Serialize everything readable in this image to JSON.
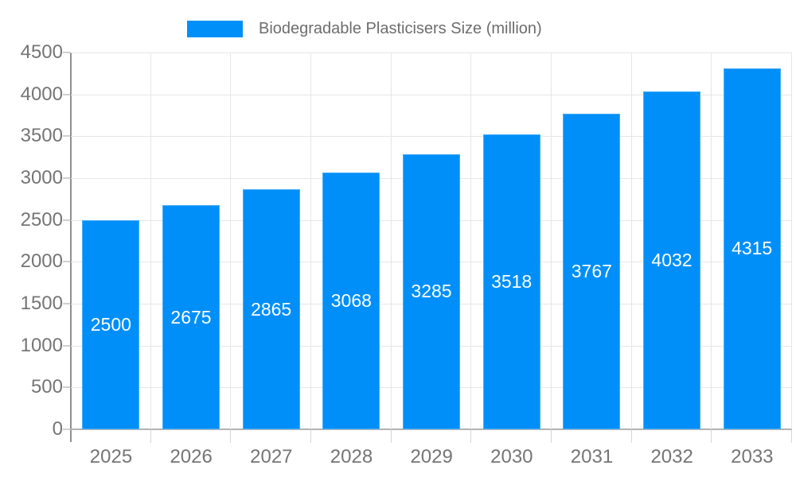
{
  "legend": {
    "label": "Biodegradable Plasticisers Size (million)"
  },
  "chart_data": {
    "type": "bar",
    "title": "Biodegradable Plasticisers Size (million)",
    "series": [
      {
        "name": "Biodegradable Plasticisers Size (million)",
        "values": [
          2500,
          2675,
          2865,
          3068,
          3285,
          3518,
          3767,
          4032,
          4315
        ]
      }
    ],
    "categories": [
      "2025",
      "2026",
      "2027",
      "2028",
      "2029",
      "2030",
      "2031",
      "2032",
      "2033"
    ],
    "data_labels": [
      "2500",
      "2675",
      "2865",
      "3068",
      "3285",
      "3518",
      "3767",
      "4032",
      "4315"
    ],
    "yticks": [
      0,
      500,
      1000,
      1500,
      2000,
      2500,
      3000,
      3500,
      4000,
      4500
    ],
    "ylim": [
      0,
      4500
    ],
    "xlabel": "",
    "ylabel": "",
    "grid": true,
    "legend_position": "top",
    "colors": {
      "bar": "#008ff8",
      "bar_label": "#ffffff",
      "axis_text": "#757575",
      "legend_text": "#6d6d6d",
      "gridline": "#e6e6e6",
      "y_axis_line": "#8f8f8f",
      "x_axis_line": "#b2b2b2",
      "background": "#ffffff"
    }
  }
}
